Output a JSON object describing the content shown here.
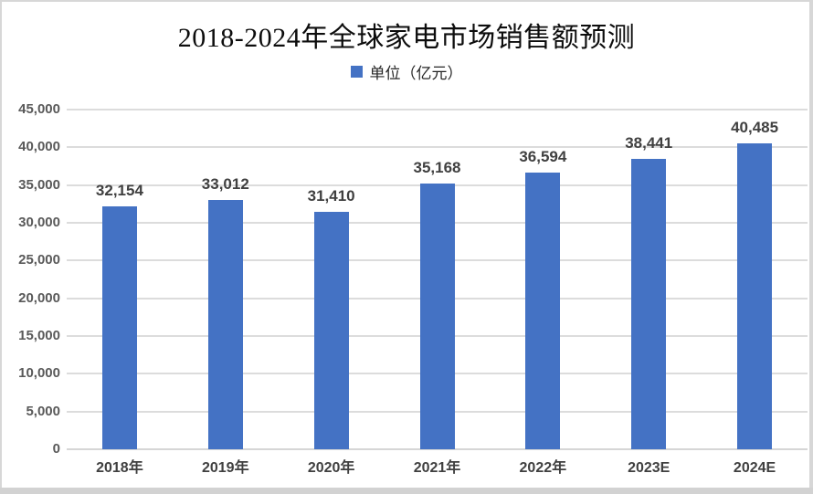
{
  "title": "2018-2024年全球家电市场销售额预测",
  "legend": {
    "label": "单位（亿元）",
    "marker_color": "#4472C4"
  },
  "chart_data": {
    "type": "bar",
    "title": "2018-2024年全球家电市场销售额预测",
    "categories": [
      "2018年",
      "2019年",
      "2020年",
      "2021年",
      "2022年",
      "2023E",
      "2024E"
    ],
    "values": [
      32154,
      33012,
      31410,
      35168,
      36594,
      38441,
      40485
    ],
    "value_labels": [
      "32,154",
      "33,012",
      "31,410",
      "35,168",
      "36,594",
      "38,441",
      "40,485"
    ],
    "series_name": "单位（亿元）",
    "xlabel": "",
    "ylabel": "",
    "ylim": [
      0,
      45000
    ],
    "ytick_step": 5000,
    "ytick_labels": [
      "0",
      "5,000",
      "10,000",
      "15,000",
      "20,000",
      "25,000",
      "30,000",
      "35,000",
      "40,000",
      "45,000"
    ],
    "grid": true,
    "legend_position": "top",
    "bar_color": "#4472C4",
    "gridline_color": "#dcdcdc"
  }
}
